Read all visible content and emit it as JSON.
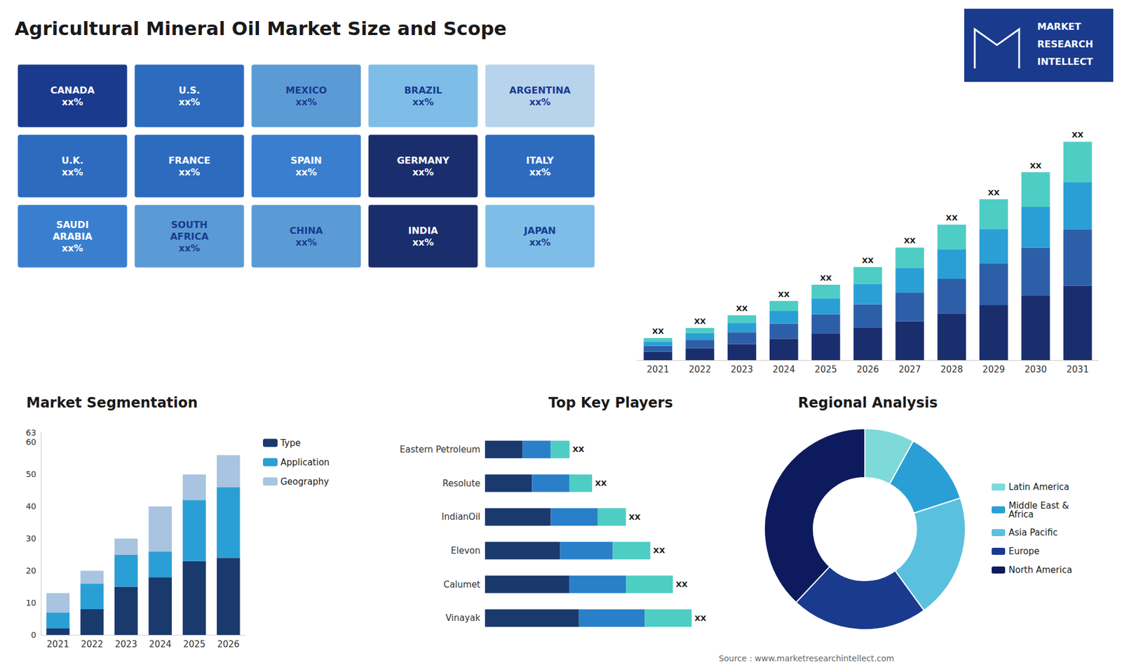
{
  "chart_data": [
    {
      "type": "text",
      "title": "Agricultural Mineral Oil Market Size and Scope",
      "annotations": [
        "Source : www.marketresearchintellect.com"
      ]
    },
    {
      "type": "logo",
      "annotations": [
        "MARKET",
        "RESEARCH",
        "INTELLECT"
      ]
    },
    {
      "type": "map",
      "annotations": [
        "CANADA\nxx%",
        "U.S.\nxx%",
        "MEXICO\nxx%",
        "BRAZIL\nxx%",
        "ARGENTINA\nxx%",
        "U.K.\nxx%",
        "FRANCE\nxx%",
        "SPAIN\nxx%",
        "GERMANY\nxx%",
        "ITALY\nxx%",
        "SAUDI\nARABIA\nxx%",
        "SOUTH\nAFRICA\nxx%",
        "CHINA\nxx%",
        "INDIA\nxx%",
        "JAPAN\nxx%"
      ],
      "colors": [
        "#1a3a8e",
        "#2d6bbf",
        "#5b9bd5",
        "#7dbde8",
        "#b8d4ed",
        "#2d6bbf",
        "#2d6bbf",
        "#3a7fcf",
        "#1a2e6e",
        "#2d6bbf",
        "#3a7fcf",
        "#5b9bd5",
        "#5b9bd5",
        "#1a2e6e",
        "#7dbde8"
      ]
    },
    {
      "type": "bar",
      "stacked": true,
      "categories": [
        "2021",
        "2022",
        "2023",
        "2024",
        "2025",
        "2026",
        "2027",
        "2028",
        "2029",
        "2030",
        "2031"
      ],
      "series": [
        {
          "color": "#1a2e6e",
          "values": [
            1.0,
            1.4,
            1.9,
            2.5,
            3.1,
            3.8,
            4.6,
            5.5,
            6.5,
            7.6,
            8.8
          ]
        },
        {
          "color": "#2d5fa8",
          "values": [
            0.7,
            1.0,
            1.4,
            1.8,
            2.3,
            2.8,
            3.4,
            4.1,
            4.9,
            5.7,
            6.6
          ]
        },
        {
          "color": "#2a9fd6",
          "values": [
            0.5,
            0.8,
            1.1,
            1.5,
            1.9,
            2.4,
            2.9,
            3.5,
            4.1,
            4.8,
            5.6
          ]
        },
        {
          "color": "#4ecdc4",
          "values": [
            0.4,
            0.6,
            0.9,
            1.2,
            1.6,
            2.0,
            2.4,
            2.9,
            3.5,
            4.1,
            4.8
          ]
        }
      ],
      "ylim": [
        0,
        30.8
      ],
      "tick_labels": "x",
      "grid": false,
      "annotations": [
        "XX",
        "XX",
        "XX",
        "XX",
        "XX",
        "XX",
        "XX",
        "XX",
        "XX",
        "XX",
        "XX"
      ]
    },
    {
      "type": "bar",
      "title": "Market Segmentation",
      "stacked": true,
      "categories": [
        "2021",
        "2022",
        "2023",
        "2024",
        "2025",
        "2026"
      ],
      "series": [
        {
          "name": "Type",
          "color": "#1a3a6e",
          "values": [
            2,
            8,
            15,
            18,
            23,
            24
          ]
        },
        {
          "name": "Application",
          "color": "#2a9fd6",
          "values": [
            5,
            8,
            10,
            8,
            19,
            22
          ]
        },
        {
          "name": "Geography",
          "color": "#a8c4e0",
          "values": [
            6,
            4,
            5,
            14,
            8,
            10
          ]
        }
      ],
      "ylim": [
        0,
        63
      ],
      "yticks": [
        0,
        10,
        20,
        30,
        40,
        50,
        60
      ],
      "grid": false,
      "legend": "right"
    },
    {
      "type": "bar",
      "title": "Top Key Players",
      "stacked": true,
      "orientation": "horizontal",
      "categories": [
        "Vinayak",
        "Calumet",
        "Elevon",
        "IndianOil",
        "Resolute",
        "Eastern Petroleum"
      ],
      "series": [
        {
          "color": "#1a3a6e",
          "values": [
            5.0,
            4.5,
            4.0,
            3.5,
            2.5,
            2.0
          ]
        },
        {
          "color": "#2a7fc9",
          "values": [
            3.5,
            3.0,
            2.8,
            2.5,
            2.0,
            1.5
          ]
        },
        {
          "color": "#4ecdc4",
          "values": [
            2.5,
            2.5,
            2.0,
            1.5,
            1.2,
            1.0
          ]
        }
      ],
      "xlim": [
        0,
        14
      ],
      "tick_labels": "y",
      "grid": false,
      "annotations": [
        "XX",
        "XX",
        "XX",
        "XX",
        "XX",
        "XX"
      ]
    },
    {
      "type": "pie",
      "title": "Regional Analysis",
      "categories": [
        "Latin America",
        "Middle East &\nAfrica",
        "Asia Pacific",
        "Europe",
        "North America"
      ],
      "values": [
        8,
        12,
        20,
        22,
        38
      ],
      "colors": [
        "#7ed9d9",
        "#2a9fd6",
        "#5bc0de",
        "#1a3a8e",
        "#0d1b5e"
      ],
      "legend": "right"
    }
  ]
}
